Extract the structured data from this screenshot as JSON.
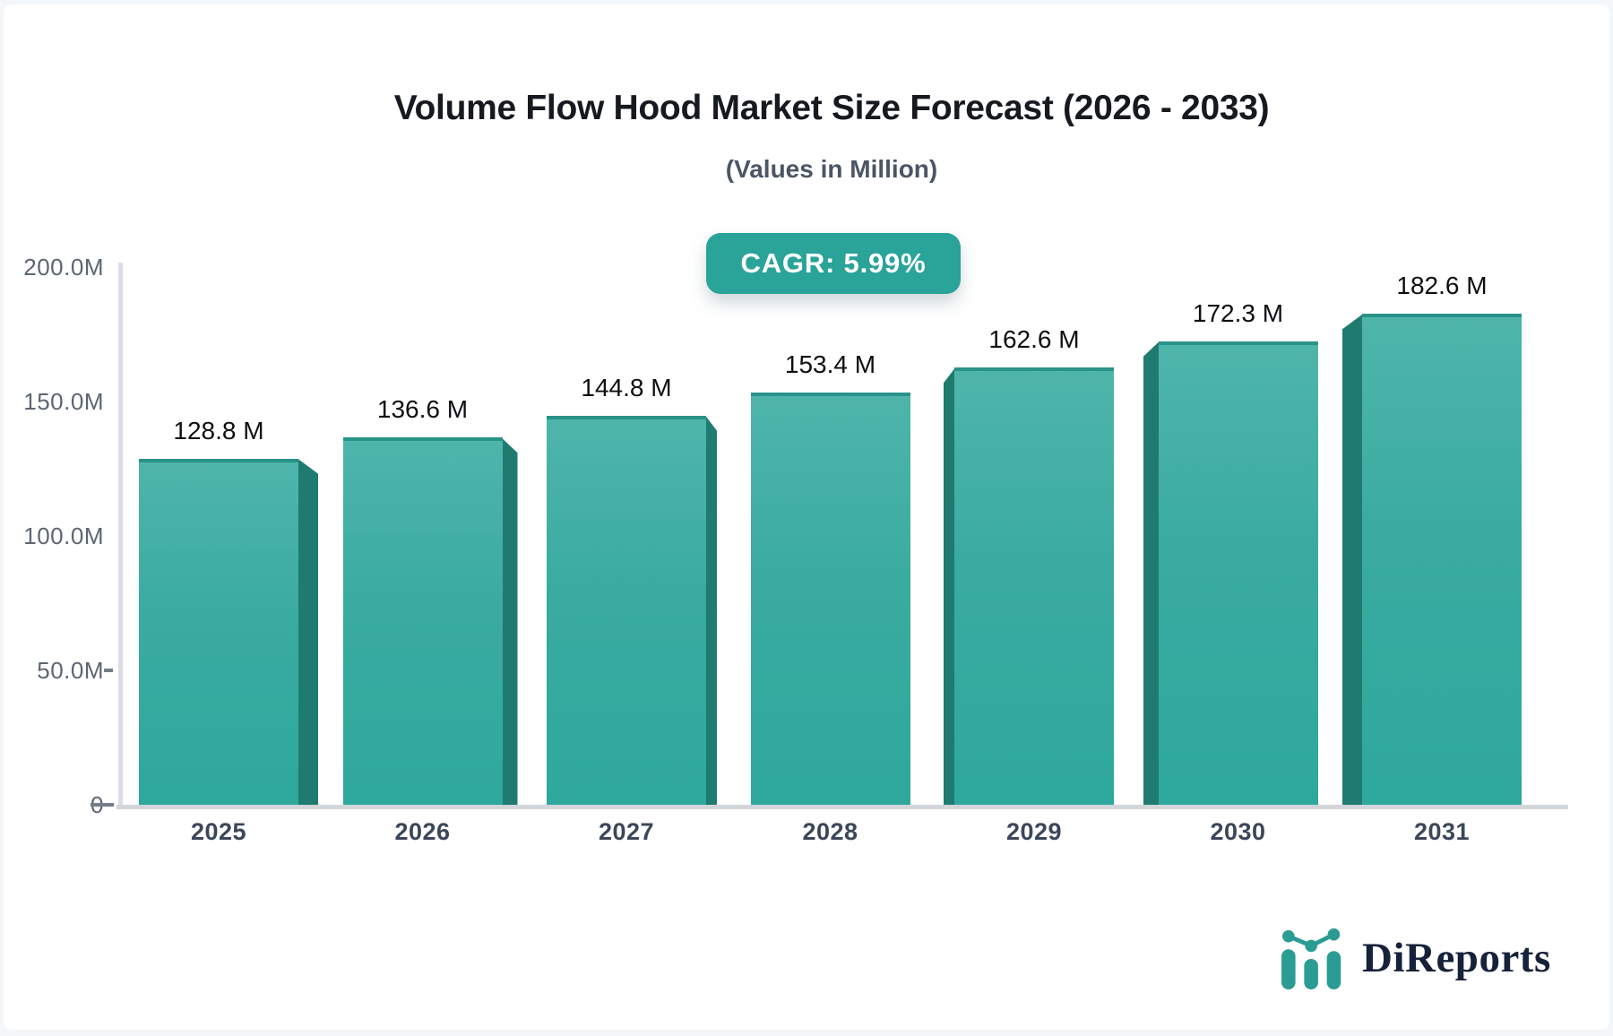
{
  "chart_data": {
    "type": "bar",
    "title": "Volume Flow Hood Market Size Forecast (2026 - 2033)",
    "subtitle": "(Values in Million)",
    "cagr_label": "CAGR: 5.99%",
    "categories": [
      "2025",
      "2026",
      "2027",
      "2028",
      "2029",
      "2030",
      "2031"
    ],
    "values": [
      128.8,
      136.6,
      144.8,
      153.4,
      162.6,
      172.3,
      182.6
    ],
    "value_labels": [
      "128.8 M",
      "136.6 M",
      "144.8 M",
      "153.4 M",
      "162.6 M",
      "172.3 M",
      "182.6 M"
    ],
    "unit": "Million",
    "ylim": [
      0,
      200
    ],
    "yticks": [
      {
        "label": "200.0M",
        "value": 200
      },
      {
        "label": "150.0M",
        "value": 150
      },
      {
        "label": "100.0M",
        "value": 100
      },
      {
        "label": "50.0M",
        "value": 50
      },
      {
        "label": "0",
        "value": 0
      }
    ],
    "grid": false,
    "legend": false,
    "bar_style": "3d-perspective-center-vanishing"
  },
  "logo": {
    "text": "DiReports",
    "icon": "mini-bar-line-chart-icon"
  },
  "colors": {
    "bar_face_top": "#4fb5ab",
    "bar_face_bottom": "#2ea89d",
    "bar_cap": "#2a9389",
    "bar_side": "#1f7b70",
    "badge_bg": "#2aa399",
    "axis_line": "#dadde2",
    "baseline": "#d2d6db",
    "title_text": "#16191e",
    "subtitle_text": "#4a5565",
    "y_label_text": "#5c6672",
    "x_label_text": "#3b4759",
    "logo_navy": "#16213a",
    "logo_teal": "#2b9c93"
  }
}
